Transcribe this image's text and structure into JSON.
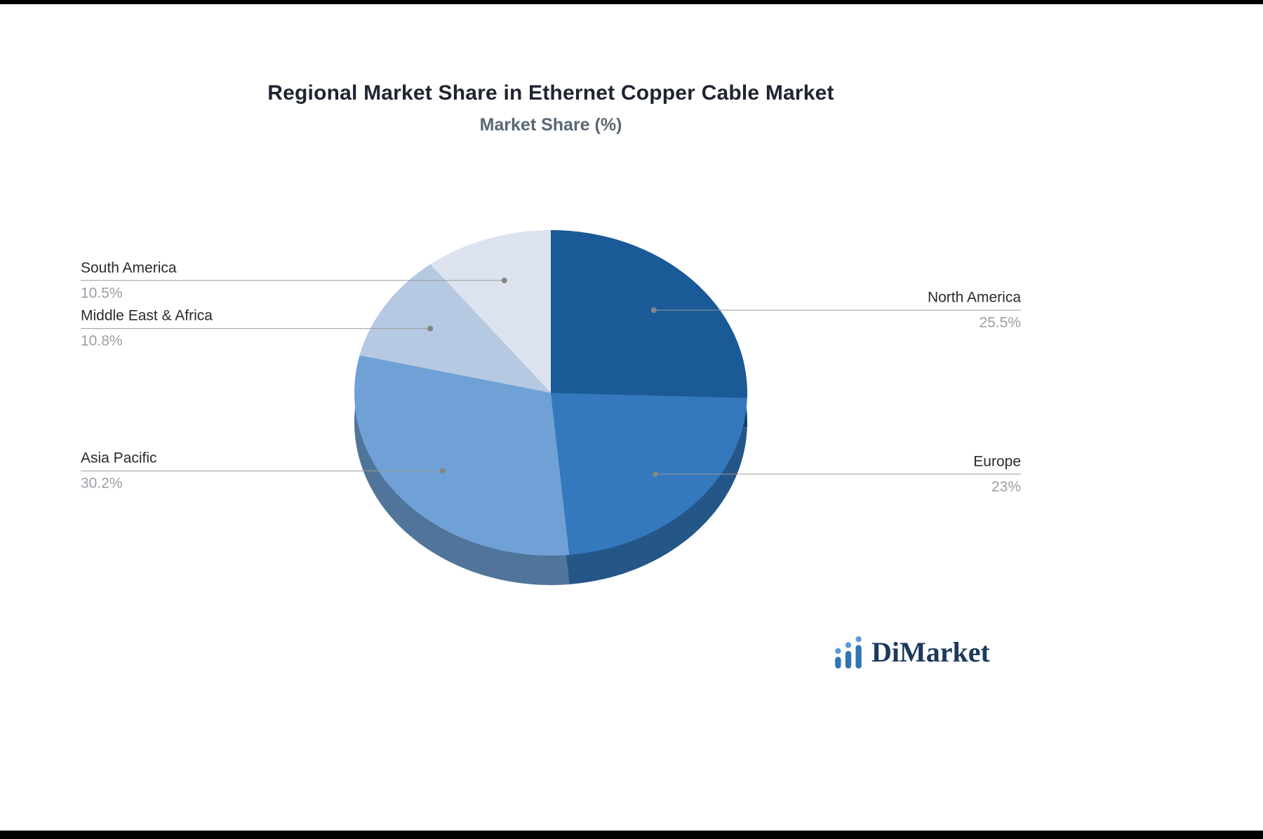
{
  "chart_data": {
    "type": "pie",
    "style": "3d",
    "title": "Regional Market Share in Ethernet Copper Cable Market",
    "subtitle": "Market Share (%)",
    "unit": "%",
    "start_angle_deg": 0,
    "direction": "clockwise",
    "label_style": "leader-lines",
    "legend_position": "none",
    "slices": [
      {
        "label": "North America",
        "value": 25.5,
        "display": "25.5%",
        "color": "#1a5a96"
      },
      {
        "label": "Europe",
        "value": 23,
        "display": "23%",
        "color": "#3478bd"
      },
      {
        "label": "Asia Pacific",
        "value": 30.2,
        "display": "30.2%",
        "color": "#6fa1d6"
      },
      {
        "label": "Middle East & Africa",
        "value": 10.8,
        "display": "10.8%",
        "color": "#b5c9e2"
      },
      {
        "label": "South America",
        "value": 10.5,
        "display": "10.5%",
        "color": "#dde3ee"
      }
    ],
    "leader_line_color": "#9a9a9a",
    "leader_dot_color": "#858585",
    "label_color": "#2b2b2b",
    "value_color": "#9aa0a6"
  },
  "branding": {
    "logo_text": "DiMarket",
    "logo_icon": "bar-chart-icon",
    "logo_text_color": "#1b3a5c",
    "logo_icon_color": "#2e75b6",
    "logo_icon_dot_color": "#5b9bd5"
  }
}
